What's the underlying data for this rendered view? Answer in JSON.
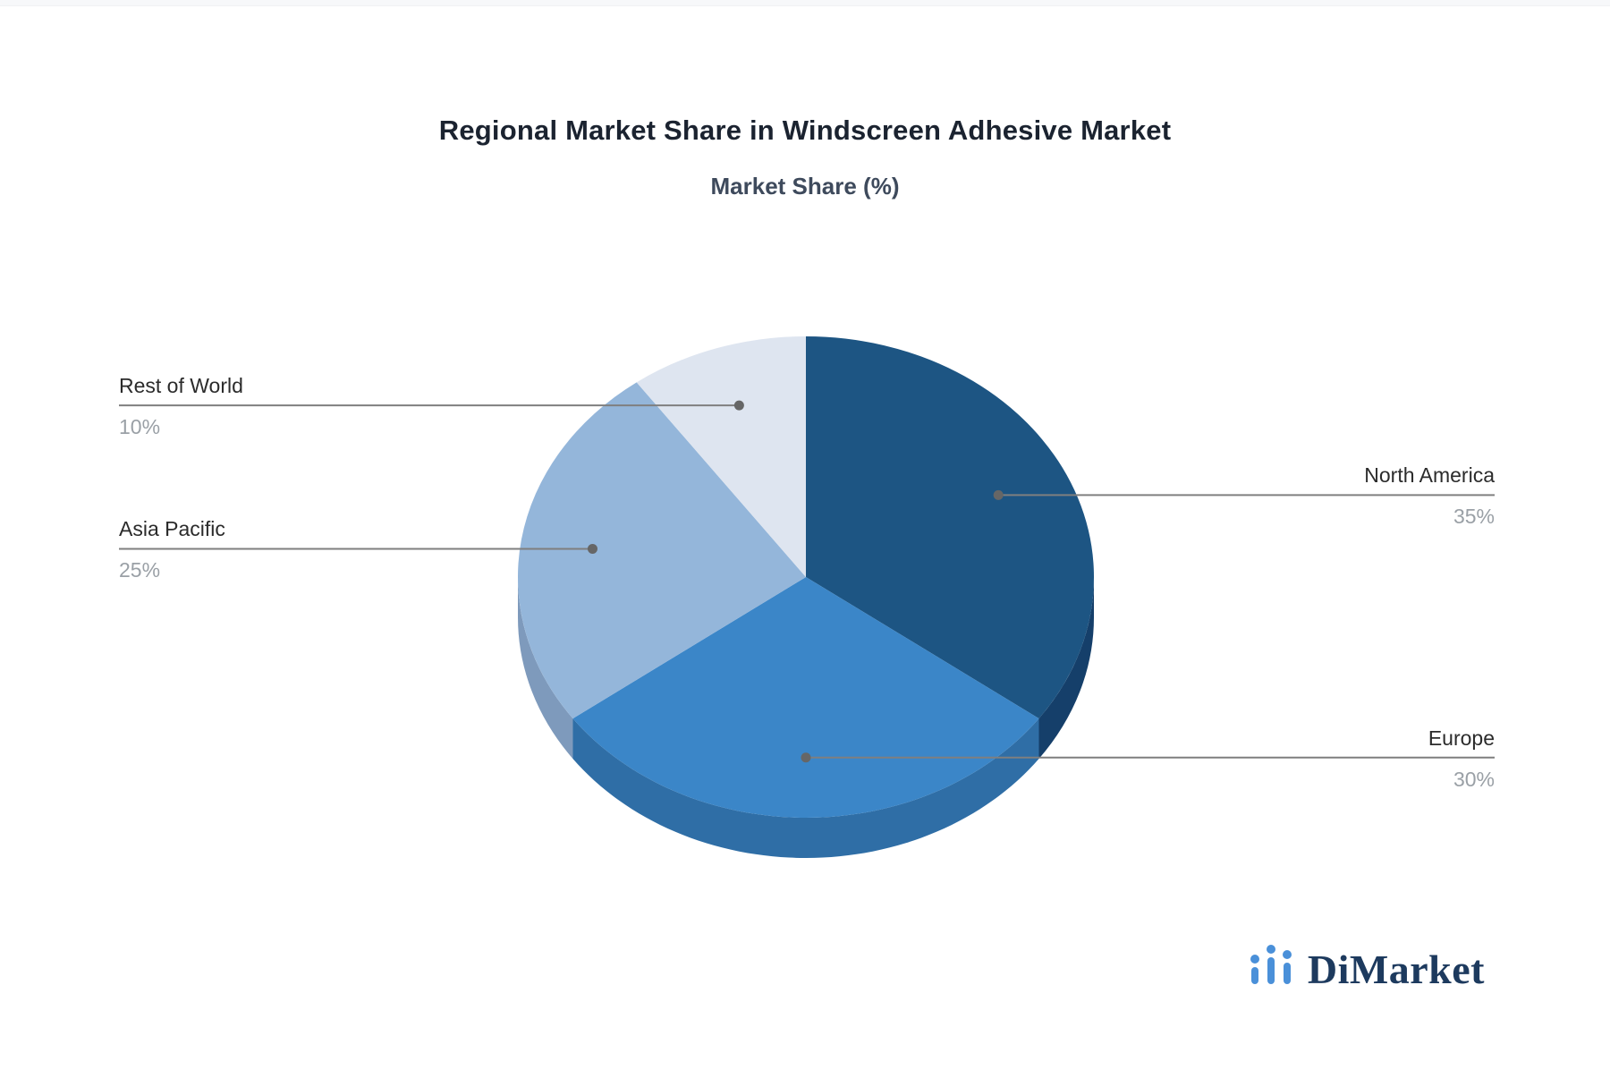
{
  "page": {
    "title": "Regional Market Share in Windscreen Adhesive Market",
    "subtitle": "Market Share (%)"
  },
  "brand": {
    "name": "DiMarket",
    "text_color": "#1d3a5e",
    "icon_color": "#4a90d9"
  },
  "chart_data": {
    "type": "pie",
    "title": "Regional Market Share in Windscreen Adhesive Market",
    "subtitle": "Market Share (%)",
    "unit": "%",
    "style": "3d-pie",
    "start_angle_deg": -90,
    "direction": "clockwise",
    "legend": "none",
    "leader_color": "#7f7f7f",
    "leader_dot_color": "#666666",
    "slices": [
      {
        "name": "North America",
        "value": 35,
        "pct_label": "35%",
        "color": "#1d5583",
        "side_color": "#153f6a",
        "label_side": "right"
      },
      {
        "name": "Europe",
        "value": 30,
        "pct_label": "30%",
        "color": "#3b86c8",
        "side_color": "#2f6ea6",
        "label_side": "right"
      },
      {
        "name": "Asia Pacific",
        "value": 25,
        "pct_label": "25%",
        "color": "#94b6da",
        "side_color": "#7e9abc",
        "label_side": "left"
      },
      {
        "name": "Rest of World",
        "value": 10,
        "pct_label": "10%",
        "color": "#dee5f0",
        "side_color": "#c3cede",
        "label_side": "left"
      }
    ]
  }
}
